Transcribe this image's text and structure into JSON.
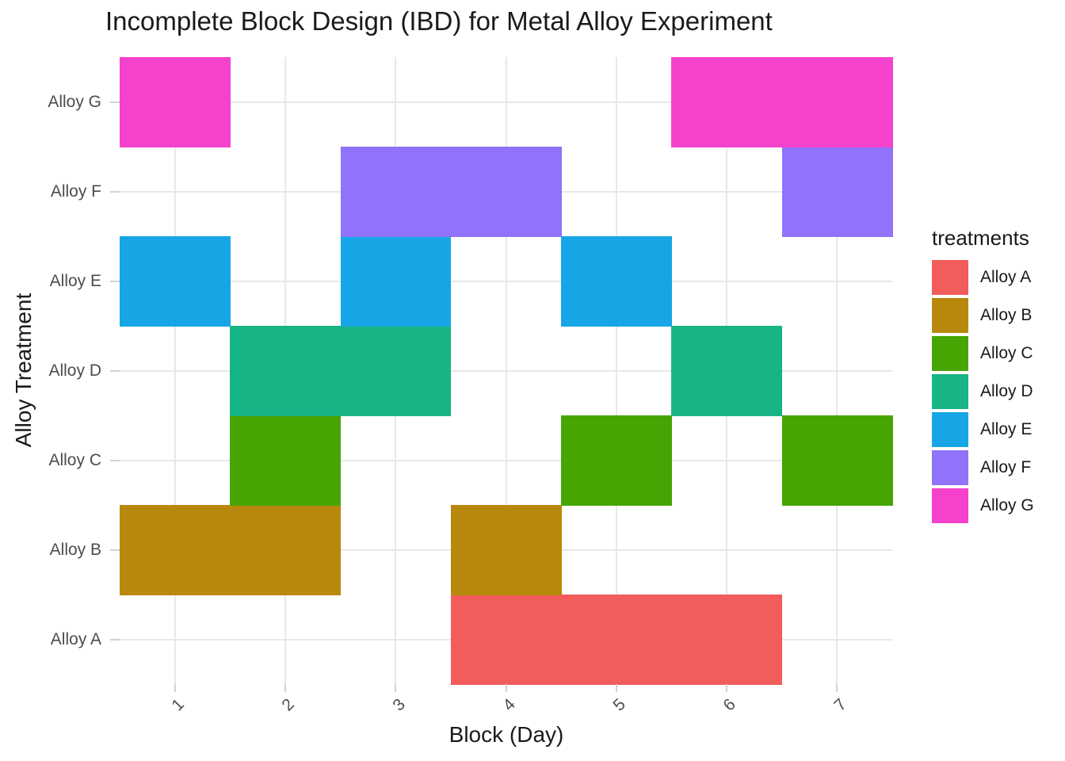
{
  "chart_data": {
    "type": "heatmap",
    "title": "Incomplete Block Design (IBD) for Metal Alloy Experiment",
    "xlabel": "Block (Day)",
    "ylabel": "Alloy Treatment",
    "x_categories": [
      "1",
      "2",
      "3",
      "4",
      "5",
      "6",
      "7"
    ],
    "y_categories_bottom_to_top": [
      "Alloy A",
      "Alloy B",
      "Alloy C",
      "Alloy D",
      "Alloy E",
      "Alloy F",
      "Alloy G"
    ],
    "grid": true,
    "legend_position": "right",
    "legend": {
      "title": "treatments",
      "entries": [
        {
          "label": "Alloy A",
          "color": "#F25C5B"
        },
        {
          "label": "Alloy B",
          "color": "#B8880C"
        },
        {
          "label": "Alloy C",
          "color": "#46A503"
        },
        {
          "label": "Alloy D",
          "color": "#17B485"
        },
        {
          "label": "Alloy E",
          "color": "#17A6E5"
        },
        {
          "label": "Alloy F",
          "color": "#9172FA"
        },
        {
          "label": "Alloy G",
          "color": "#F442CC"
        }
      ]
    },
    "blocks": [
      {
        "block": "1",
        "treatments": [
          "Alloy B",
          "Alloy E",
          "Alloy G"
        ]
      },
      {
        "block": "2",
        "treatments": [
          "Alloy B",
          "Alloy C",
          "Alloy D"
        ]
      },
      {
        "block": "3",
        "treatments": [
          "Alloy D",
          "Alloy E",
          "Alloy F"
        ]
      },
      {
        "block": "4",
        "treatments": [
          "Alloy A",
          "Alloy B",
          "Alloy F"
        ]
      },
      {
        "block": "5",
        "treatments": [
          "Alloy A",
          "Alloy C",
          "Alloy E"
        ]
      },
      {
        "block": "6",
        "treatments": [
          "Alloy A",
          "Alloy D",
          "Alloy G"
        ]
      },
      {
        "block": "7",
        "treatments": [
          "Alloy C",
          "Alloy F",
          "Alloy G"
        ]
      }
    ]
  }
}
